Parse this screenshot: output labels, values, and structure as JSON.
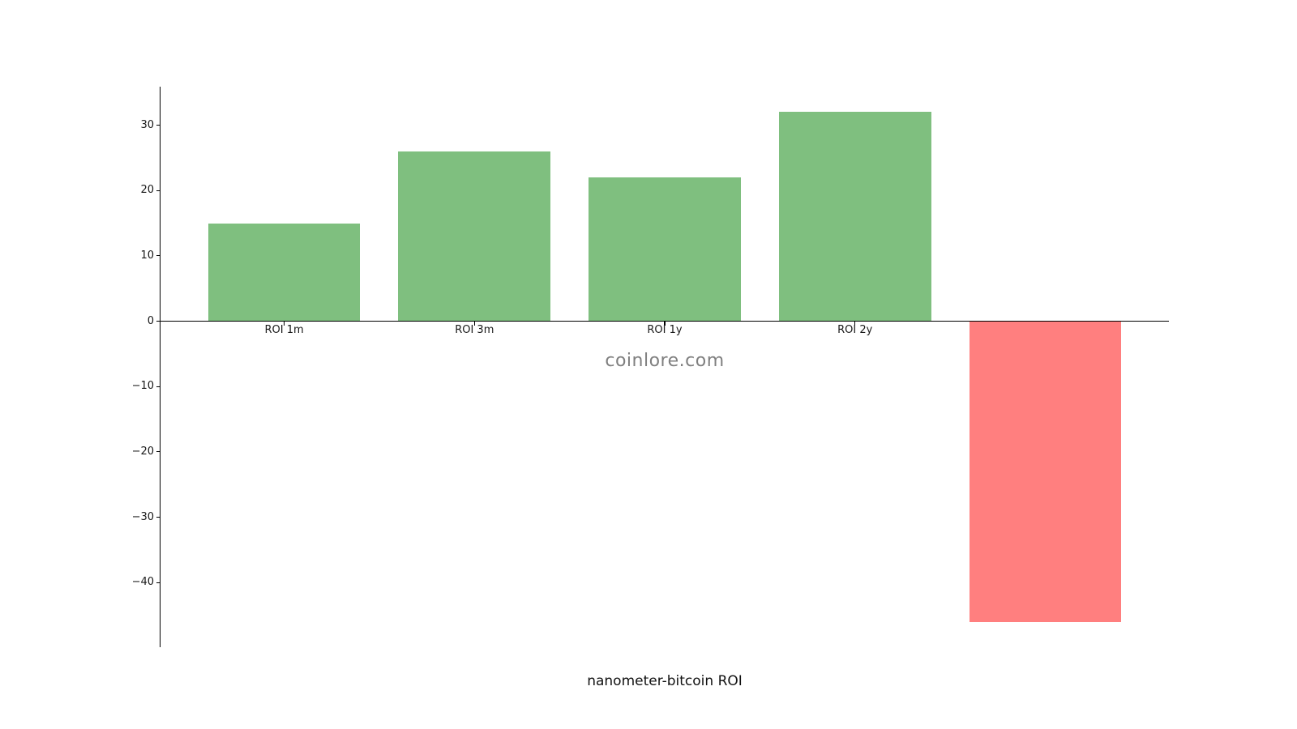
{
  "chart_data": {
    "type": "bar",
    "categories": [
      "ROI 1m",
      "ROI 3m",
      "ROI 1y",
      "ROI 2y",
      ""
    ],
    "values": [
      15,
      26,
      22,
      32,
      -46
    ],
    "xlabel": "nanometer-bitcoin ROI",
    "ylabel": "",
    "ylim": [
      -49.9,
      35.9
    ],
    "yticks": [
      30,
      20,
      10,
      0,
      -10,
      -20,
      -30,
      -40
    ],
    "ytick_labels": [
      "30",
      "20",
      "10",
      "0",
      "−10",
      "−20",
      "−30",
      "−40"
    ],
    "grid": false,
    "legend_position": "none",
    "positive_color": "#7fbf7f",
    "negative_color": "#ff7f7f",
    "axis_color": "#000000"
  },
  "watermark": {
    "text": "coinlore.com",
    "color": "#7f7f7f"
  }
}
